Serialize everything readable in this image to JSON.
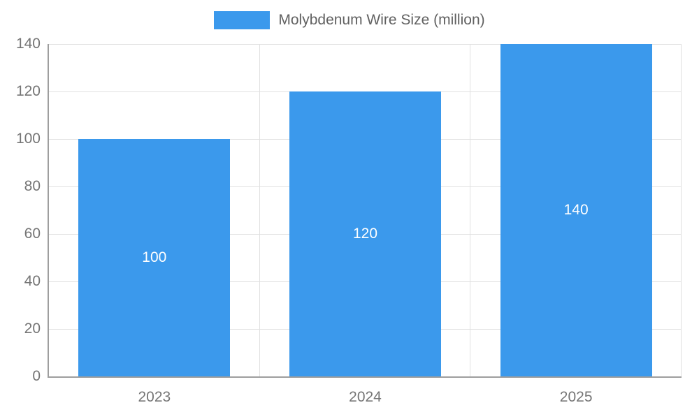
{
  "chart_data": {
    "type": "bar",
    "title": "",
    "categories": [
      "2023",
      "2024",
      "2025"
    ],
    "series": [
      {
        "name": "Molybdenum Wire Size (million)",
        "values": [
          100,
          120,
          140
        ]
      }
    ],
    "data_labels": [
      "100",
      "120",
      "140"
    ],
    "xlabel": "",
    "ylabel": "",
    "ylim": [
      0,
      140
    ],
    "yticks": [
      0,
      20,
      40,
      60,
      80,
      100,
      120,
      140
    ],
    "grid": true,
    "legend_position": "top",
    "bar_color": "#3b99ec",
    "bar_label_color": "#ffffff",
    "axis_color": "#9e9e9e",
    "grid_color": "#e0e0e0",
    "tick_label_color": "#757575",
    "legend_text_color": "#616161"
  }
}
